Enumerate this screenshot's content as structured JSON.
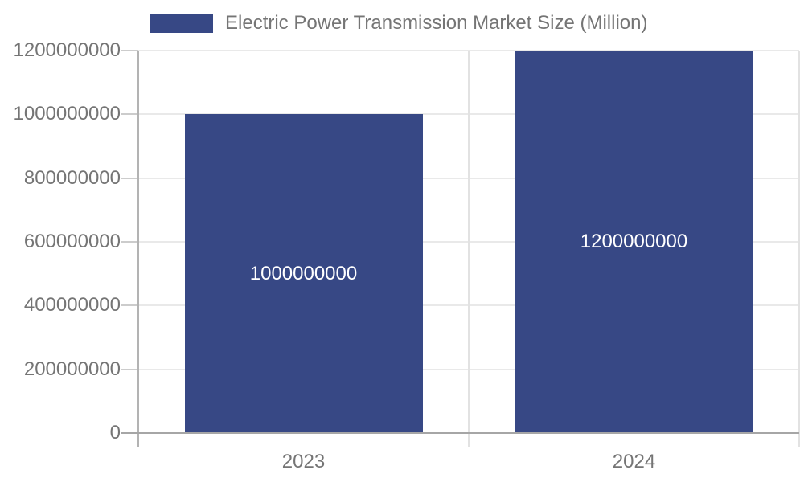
{
  "chart_data": {
    "type": "bar",
    "title": "Electric Power Transmission Market Size (Million)",
    "legend": {
      "label": "Electric Power Transmission Market Size (Million)",
      "position": "top"
    },
    "categories": [
      "2023",
      "2024"
    ],
    "series": [
      {
        "name": "Electric Power Transmission Market Size (Million)",
        "values": [
          1000000000,
          1200000000
        ]
      }
    ],
    "bar_value_labels": [
      "1000000000",
      "1200000000"
    ],
    "xlabel": "",
    "ylabel": "",
    "ylim": [
      0,
      1200000000
    ],
    "ytick_step": 200000000,
    "ytick_labels": [
      "0",
      "200000000",
      "400000000",
      "600000000",
      "800000000",
      "1000000000",
      "1200000000"
    ],
    "grid": true,
    "colors": {
      "bar": "#374885",
      "bar_value_label": "#ffffff",
      "text": "#757575",
      "gridline": "#e9e9e9",
      "separator": "#e2e2e2",
      "axis_line": "#a6a6a6",
      "spine": "#b3b3b3",
      "tick": "#cccccc",
      "background": "#ffffff"
    }
  }
}
